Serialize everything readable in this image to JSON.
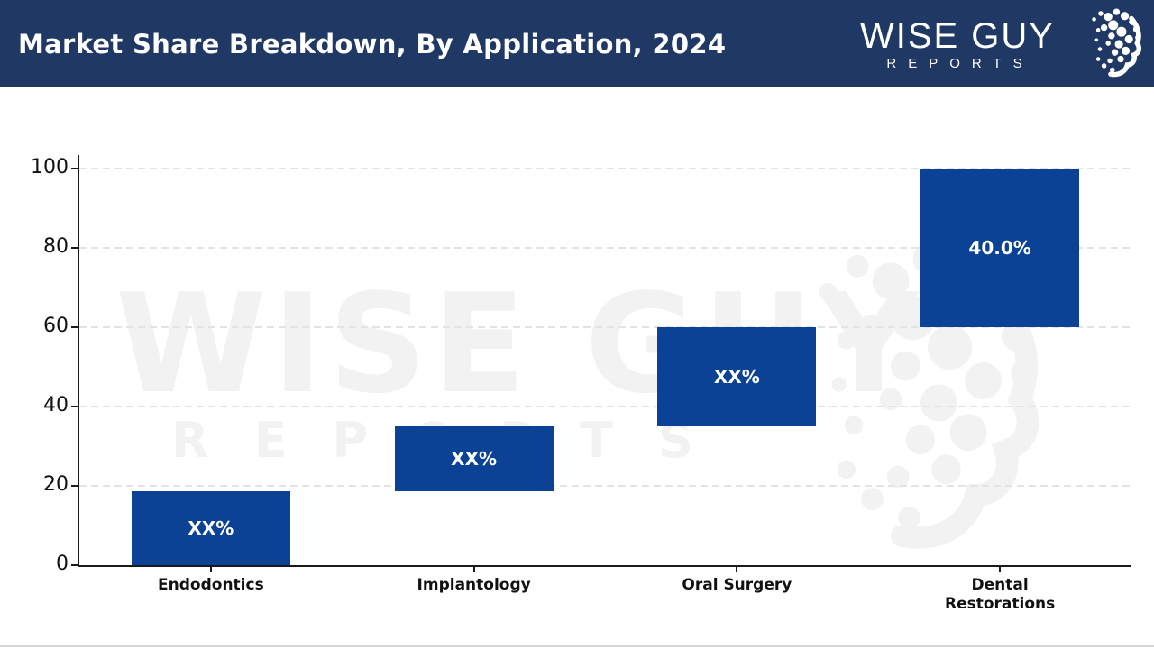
{
  "header": {
    "title": "Market Share Breakdown, By Application, 2024",
    "bg_color": "#1f3864",
    "logo": {
      "line1": "WISE GUY",
      "line2": "REPORTS"
    }
  },
  "watermark": {
    "line1": "WISE GUY",
    "line2": "REPORTS"
  },
  "chart_data": {
    "type": "bar",
    "subtype": "waterfall-floating-bars",
    "title": "Market Share Breakdown, By Application, 2024",
    "categories": [
      "Endodontics",
      "Implantology",
      "Oral Surgery",
      "Dental Restorations"
    ],
    "segments": [
      {
        "category": "Endodontics",
        "from": 0,
        "to": 18.75,
        "label": "XX%"
      },
      {
        "category": "Implantology",
        "from": 18.75,
        "to": 35,
        "label": "XX%"
      },
      {
        "category": "Oral Surgery",
        "from": 35,
        "to": 60,
        "label": "XX%"
      },
      {
        "category": "Dental Restorations",
        "from": 60,
        "to": 100,
        "label": "40.0%"
      }
    ],
    "yticks": [
      0,
      20,
      40,
      60,
      80,
      100
    ],
    "ylim": [
      0,
      105
    ],
    "grid": "horizontal-dashed",
    "legend": "none",
    "bar_color": "#0b4295",
    "bar_label_color": "#ffffff",
    "axis_color": "#1a1a1a",
    "gridline_color": "#e3e3e3"
  }
}
